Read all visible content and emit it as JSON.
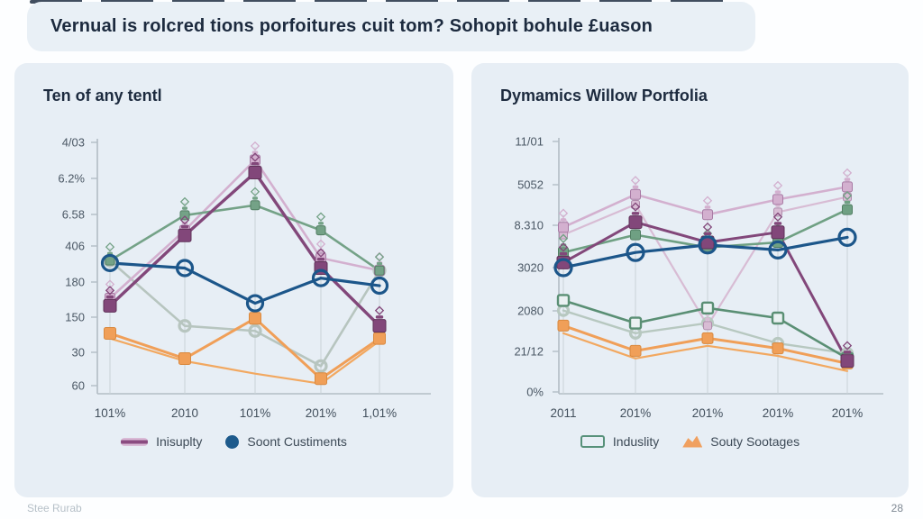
{
  "page": {
    "title": "Vernual is rolcred tions porfoitures cuit tom? Sohopit bohule £uason",
    "footer_left": "Stee Rurab",
    "page_number": "28"
  },
  "colors": {
    "panel_bg": "#e7eef5",
    "title_card_bg": "#e9f0f6",
    "dark_text": "#1c2a3e",
    "axis": "#b3bdc5",
    "gridline": "#c9d2d8"
  },
  "charts": [
    {
      "title": "Ten of any tentl",
      "chart_data": {
        "type": "line",
        "title": "Ten of any tentl",
        "x_ticks": [
          "101%",
          "2010",
          "101%",
          "201%",
          "1,01%"
        ],
        "y_ticks": [
          "4/03",
          "6.2%",
          "6.58",
          "406",
          "180",
          "150",
          "30",
          "60"
        ],
        "value_scale_note": "series values are percent of plot height above the baseline (source axis labels are illegible)",
        "grid": "vertical-per-category",
        "legend_position": "bottom",
        "legend": [
          {
            "label": "Inisuplty",
            "swatch": "bar-pink"
          },
          {
            "label": "Soont Custiments",
            "swatch": "circle-navy"
          }
        ],
        "series": [
          {
            "name": "gray-green line",
            "color": "#b7c5bf",
            "line_width": 2.6,
            "marker": {
              "type": "ring",
              "size": 12
            },
            "values": [
              53,
              27,
              25,
              11,
              49
            ]
          },
          {
            "name": "lavender line",
            "color": "#d3b0cf",
            "line_width": 2.6,
            "marker": {
              "type": "capped",
              "size": 11,
              "stroke": "#a87aa4"
            },
            "values": [
              38,
              65,
              93,
              54,
              49
            ]
          },
          {
            "name": "green line",
            "color": "#74a287",
            "line_width": 2.6,
            "marker": {
              "type": "capped",
              "size": 10,
              "stroke": "#527e63"
            },
            "values": [
              53,
              71,
              75,
              65,
              49
            ]
          },
          {
            "name": "orange thin line",
            "color": "#f2a860",
            "line_width": 2.2,
            "values": [
              22,
              13,
              8,
              4,
              21
            ]
          },
          {
            "name": "orange line",
            "color": "#f09f58",
            "line_width": 3,
            "marker": {
              "type": "square",
              "size": 13,
              "stroke": "#d9893f"
            },
            "values": [
              24,
              14,
              30,
              6,
              22
            ]
          },
          {
            "name": "Inisuplty",
            "color": "#82477a",
            "line_width": 3.4,
            "marker": {
              "type": "capped",
              "size": 14,
              "stroke": "#5f3158"
            },
            "values": [
              35,
              63,
              88,
              50,
              27
            ]
          },
          {
            "name": "Soont Custiments",
            "color": "#1c568a",
            "line_width": 3.2,
            "marker": {
              "type": "ring",
              "size": 17
            },
            "values": [
              52,
              50,
              36,
              46,
              43
            ]
          }
        ]
      }
    },
    {
      "title": "Dymamics Willow Portfolia",
      "chart_data": {
        "type": "line",
        "title": "Dymamics Willow Portfolia",
        "x_ticks": [
          "2011",
          "201%",
          "201%",
          "201%",
          "201%"
        ],
        "y_ticks": [
          "11/01",
          "5052",
          "8.310",
          "3020",
          "2080",
          "21/12",
          "0%"
        ],
        "value_scale_note": "series values are percent of plot height above the baseline (source axis labels are illegible)",
        "grid": "vertical-per-category",
        "legend_position": "bottom",
        "legend": [
          {
            "label": "Induslity",
            "swatch": "rect-green"
          },
          {
            "label": "Souty Sootages",
            "swatch": "mound-orange"
          }
        ],
        "series": [
          {
            "name": "sage line",
            "color": "#b7c8c0",
            "line_width": 2.4,
            "marker": {
              "type": "ring",
              "size": 11
            },
            "values": [
              33,
              24,
              28,
              20,
              16
            ]
          },
          {
            "name": "lavender thin line",
            "color": "#d8bcd4",
            "line_width": 2.2,
            "marker": {
              "type": "capped",
              "size": 9,
              "stroke": "#b08cac"
            },
            "values": [
              63,
              75,
              27,
              72,
              78
            ]
          },
          {
            "name": "lavender line",
            "color": "#d3b0cf",
            "line_width": 2.6,
            "marker": {
              "type": "capped",
              "size": 11,
              "stroke": "#a87aa4"
            },
            "values": [
              66,
              79,
              71,
              77,
              82
            ]
          },
          {
            "name": "Induslity",
            "color": "#5a8f74",
            "line_width": 2.6,
            "marker": {
              "type": "square-outline",
              "size": 12
            },
            "values": [
              37,
              28,
              34,
              30,
              14
            ]
          },
          {
            "name": "orange thin line",
            "color": "#f2a860",
            "line_width": 2.2,
            "values": [
              24,
              14,
              19,
              15,
              9
            ]
          },
          {
            "name": "Souty Sootages",
            "color": "#f09f58",
            "line_width": 3,
            "marker": {
              "type": "square",
              "size": 12,
              "stroke": "#d9893f"
            },
            "values": [
              27,
              17,
              22,
              18,
              12
            ]
          },
          {
            "name": "green rising line",
            "color": "#6fa083",
            "line_width": 2.6,
            "marker": {
              "type": "capped",
              "size": 11,
              "stroke": "#527e63"
            },
            "values": [
              56,
              63,
              58,
              60,
              73
            ]
          },
          {
            "name": "purple line",
            "color": "#82477a",
            "line_width": 3,
            "marker": {
              "type": "capped",
              "size": 14,
              "stroke": "#5f3158"
            },
            "values": [
              52,
              68,
              60,
              64,
              13
            ]
          },
          {
            "name": "navy line",
            "color": "#1c568a",
            "line_width": 3.2,
            "marker": {
              "type": "ring",
              "size": 18
            },
            "values": [
              50,
              56,
              59,
              57,
              62
            ]
          }
        ]
      }
    }
  ]
}
